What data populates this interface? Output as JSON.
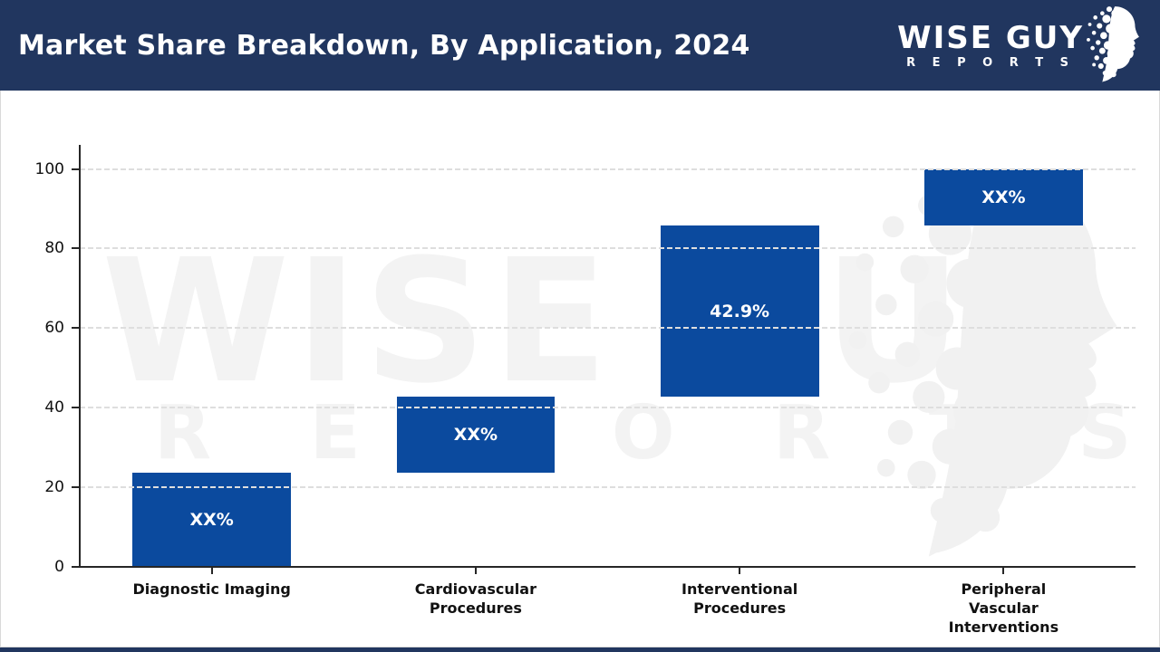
{
  "header": {
    "title": "Market Share Breakdown, By Application, 2024",
    "logo": {
      "name": "WISE GUY",
      "sub": "R E P O R T S"
    }
  },
  "watermark": {
    "text_large": "WISE GU",
    "text_small": "R E P O R T S"
  },
  "chart_data": {
    "type": "bar",
    "variant": "floating-waterfall",
    "title": "Market Share Breakdown, By Application, 2024",
    "categories": [
      "Diagnostic Imaging",
      "Cardiovascular\nProcedures",
      "Interventional\nProcedures",
      "Peripheral\nVascular\nInterventions"
    ],
    "segments": [
      {
        "category": "Diagnostic Imaging",
        "start": 0,
        "end": 23.7,
        "label": "XX%"
      },
      {
        "category": "Cardiovascular Procedures",
        "start": 23.7,
        "end": 42.8,
        "label": "XX%"
      },
      {
        "category": "Interventional Procedures",
        "start": 42.8,
        "end": 85.7,
        "label": "42.9%"
      },
      {
        "category": "Peripheral Vascular Interventions",
        "start": 85.7,
        "end": 100,
        "label": "XX%"
      }
    ],
    "xlabel": "",
    "ylabel": "",
    "ylim": [
      0,
      100
    ],
    "yticks": [
      0,
      20,
      40,
      60,
      80,
      100
    ],
    "grid": true,
    "grid_style": "dashed",
    "legend": false,
    "bar_color": "#0b4a9e",
    "bar_label_color": "#ffffff"
  },
  "colors": {
    "header_bg": "#21365f",
    "accent_blue": "#0b4a9e",
    "grid": "#dedede",
    "axis": "#262626",
    "watermark": "#f3f3f3",
    "card_border": "#d9d9d9"
  }
}
